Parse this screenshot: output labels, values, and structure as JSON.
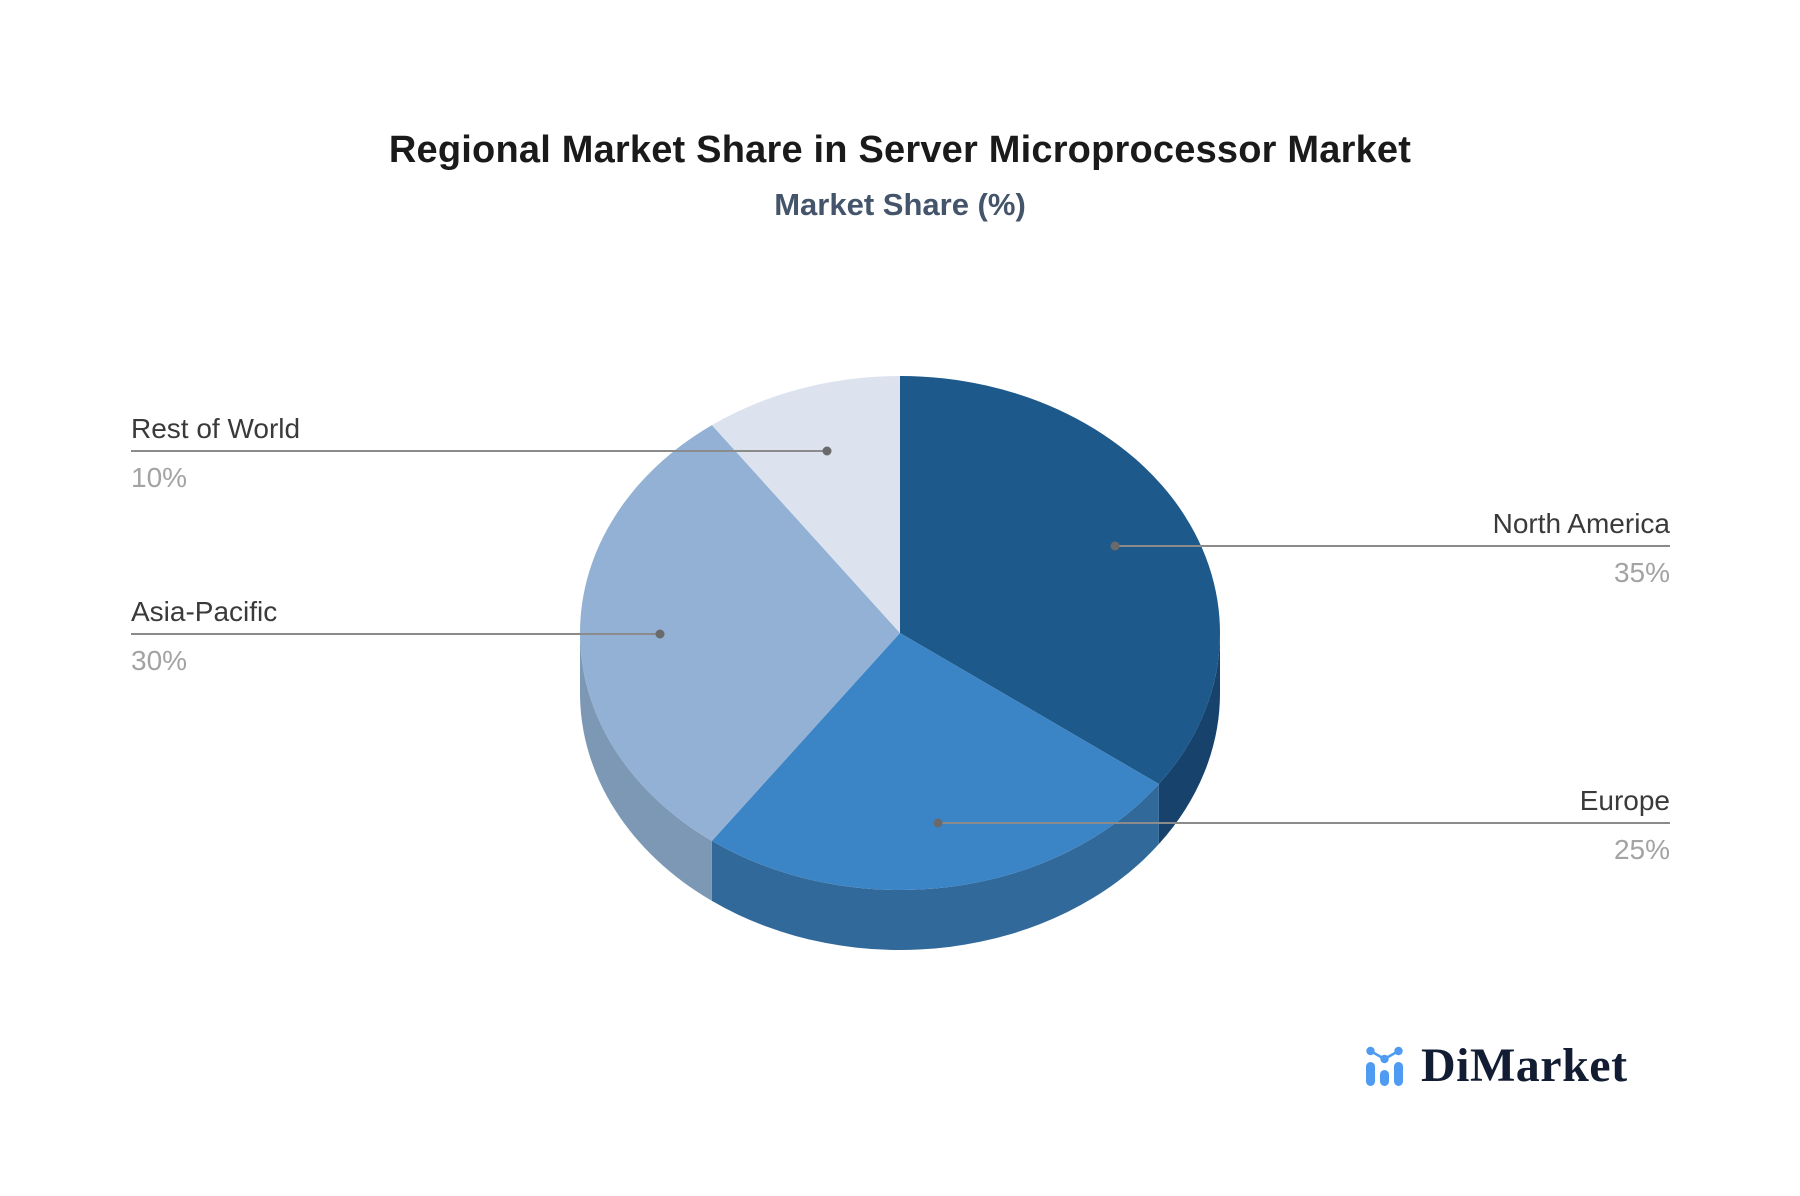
{
  "title": "Regional Market Share in Server Microprocessor Market",
  "subtitle": "Market Share (%)",
  "brand": {
    "name": "DiMarket",
    "icon": "bar-line-chart-icon",
    "text_color": "#121c33",
    "icon_color": "#4f9bf2"
  },
  "style": {
    "leader_line_color": "#8b8b8b",
    "leader_dot_color": "#6a6a6a",
    "label_name_color": "#3a3a3a",
    "label_value_color": "#a3a3a3",
    "title_color": "#1a1a1a",
    "subtitle_color": "#44546a",
    "background": "#ffffff"
  },
  "chart_data": {
    "type": "pie",
    "title": "Regional Market Share in Server Microprocessor Market",
    "subtitle": "Market Share (%)",
    "unit": "%",
    "effect": "3d",
    "start_angle_deg": 0,
    "direction": "clockwise",
    "legend_position": "leader-labels",
    "slices": [
      {
        "label": "North America",
        "value": 35,
        "display": "35%",
        "color": "#1e598b",
        "side_color": "#17426c"
      },
      {
        "label": "Europe",
        "value": 25,
        "display": "25%",
        "color": "#3b85c6",
        "side_color": "#32699b"
      },
      {
        "label": "Asia-Pacific",
        "value": 30,
        "display": "30%",
        "color": "#92b1d5",
        "side_color": "#7c98b5"
      },
      {
        "label": "Rest of World",
        "value": 10,
        "display": "10%",
        "color": "#dce3ee",
        "side_color": "#c9d2e0"
      }
    ]
  }
}
